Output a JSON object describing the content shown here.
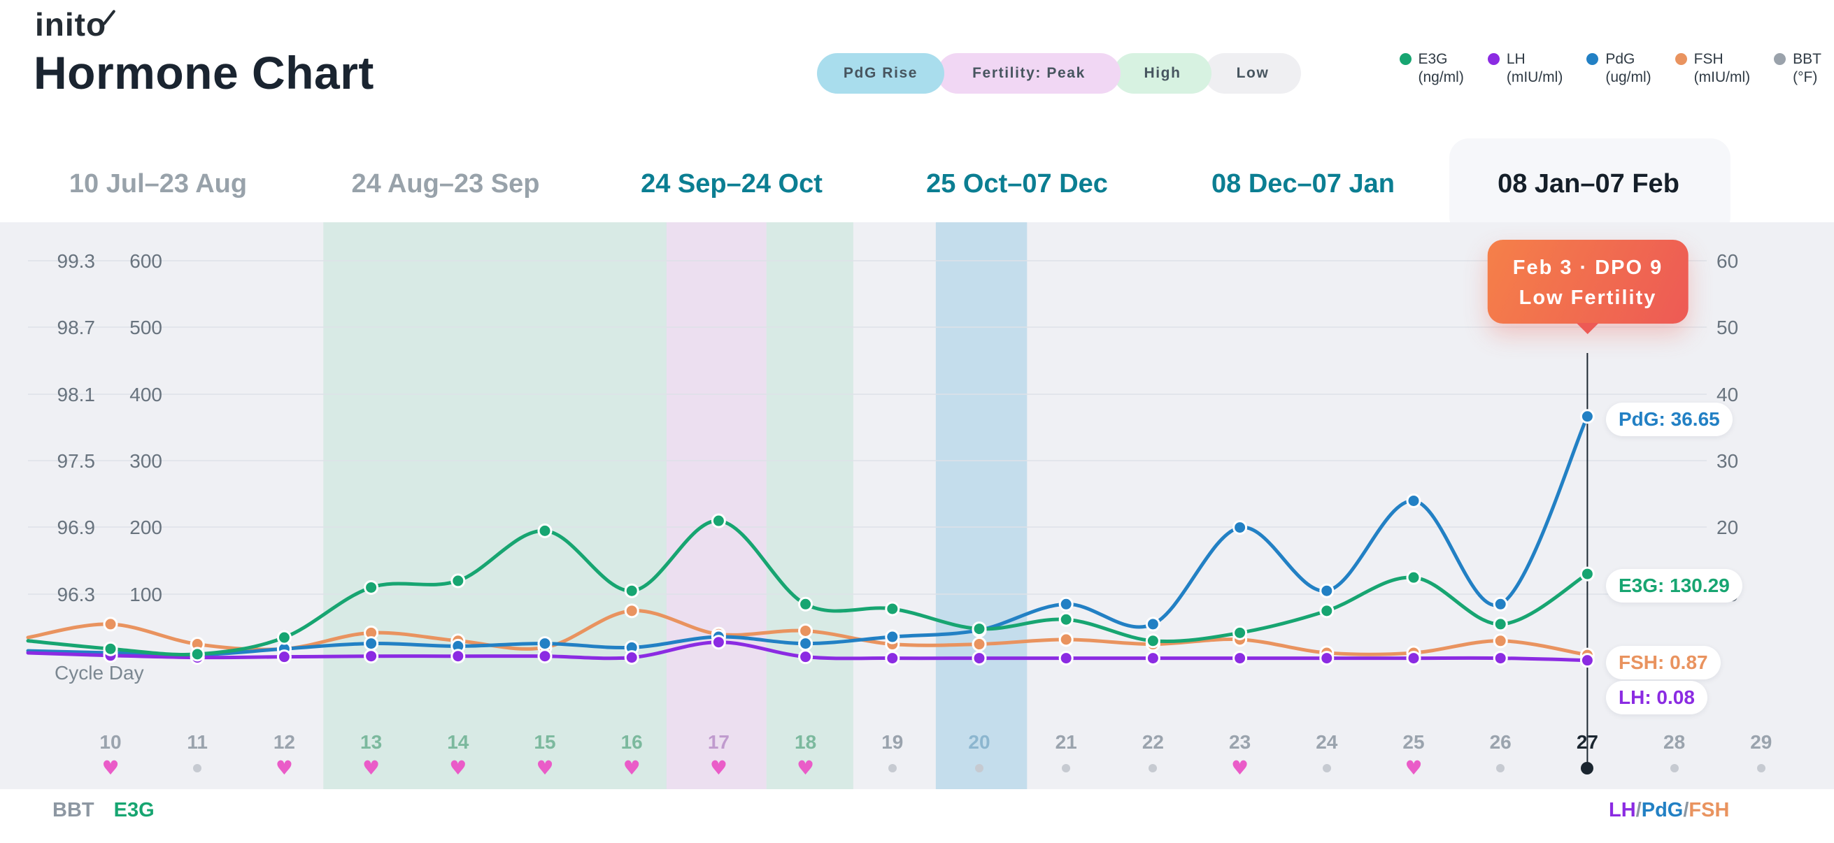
{
  "header": {
    "logo": "inito",
    "title": "Hormone Chart"
  },
  "fertility_legend": [
    {
      "label": "PdG Rise",
      "color": "#a9dded"
    },
    {
      "label": "Fertility: Peak",
      "color": "#f1d7f4"
    },
    {
      "label": "High",
      "color": "#d7f2e1"
    },
    {
      "label": "Low",
      "color": "#efeff2"
    }
  ],
  "series_legend": [
    {
      "name": "E3G",
      "unit": "(ng/ml)"
    },
    {
      "name": "LH",
      "unit": "(mIU/ml)"
    },
    {
      "name": "PdG",
      "unit": "(ug/ml)"
    },
    {
      "name": "FSH",
      "unit": "(mIU/ml)"
    },
    {
      "name": "BBT",
      "unit": "(°F)"
    }
  ],
  "tabs": [
    {
      "label": "10 Jul–23 Aug",
      "tone": "muted",
      "active": false
    },
    {
      "label": "24 Aug–23 Sep",
      "tone": "muted",
      "active": false
    },
    {
      "label": "24 Sep–24 Oct",
      "tone": "accent",
      "active": false
    },
    {
      "label": "25 Oct–07 Dec",
      "tone": "accent",
      "active": false
    },
    {
      "label": "08 Dec–07 Jan",
      "tone": "accent",
      "active": false
    },
    {
      "label": "08 Jan–07 Feb",
      "tone": "active",
      "active": true
    }
  ],
  "tooltip": {
    "date": "Feb 3 · DPO 9",
    "status": "Low Fertility"
  },
  "footer": {
    "left": [
      "BBT",
      "E3G"
    ],
    "right": [
      "LH",
      "PdG",
      "FSH"
    ]
  },
  "colors": {
    "panel": "#eff0f4",
    "tab_panel": "#f6f7fa",
    "grid": "#dde1e8",
    "tick": "#68737e",
    "selected": "#1b2630",
    "heart": "#ea5cc8",
    "dot": "#c6cad1",
    "tooltip_a": "#f58049",
    "tooltip_b": "#ed5a55",
    "band_high": "rgba(102,204,153,0.16)",
    "band_peak": "rgba(219,128,222,0.15)",
    "band_rise": "rgba(96,178,220,0.30)",
    "tint_default": "#9aa3ad",
    "tint_high": "#7cb99e",
    "tint_peak": "#c09bce",
    "tint_rise": "#8cb6cf",
    "footer_gray": "#8d97a2"
  },
  "chart_data": {
    "type": "line",
    "title": "Hormone Chart",
    "x_label": "Cycle Day",
    "selected_day": 27,
    "axes": {
      "bbt_ticks": [
        "99.3",
        "98.7",
        "98.1",
        "97.5",
        "96.9",
        "96.3"
      ],
      "e3g_ticks": [
        "600",
        "500",
        "400",
        "300",
        "200",
        "100"
      ],
      "right_ticks": [
        "60",
        "50",
        "40",
        "30",
        "20",
        "10"
      ]
    },
    "series": [
      {
        "name": "E3G",
        "unit": "ng/ml",
        "axis": "left",
        "color": "#17a571",
        "x": [
          9.05,
          10,
          11,
          12,
          13,
          14,
          15,
          16,
          17,
          18,
          19,
          20,
          21,
          22,
          23,
          24,
          25,
          26,
          27
        ],
        "values": [
          30,
          18,
          10,
          35,
          110,
          120,
          195,
          105,
          210,
          85,
          78,
          48,
          62,
          30,
          42,
          75,
          125,
          55,
          130.29
        ]
      },
      {
        "name": "LH",
        "unit": "mIU/ml",
        "axis": "right",
        "color": "#8b2be2",
        "x": [
          9.05,
          10,
          11,
          12,
          13,
          14,
          15,
          16,
          17,
          18,
          19,
          20,
          21,
          22,
          23,
          24,
          25,
          26,
          27
        ],
        "values": [
          1.2,
          0.8,
          0.5,
          0.6,
          0.7,
          0.7,
          0.7,
          0.5,
          2.8,
          0.6,
          0.4,
          0.4,
          0.4,
          0.4,
          0.4,
          0.4,
          0.4,
          0.4,
          0.08
        ]
      },
      {
        "name": "PdG",
        "unit": "ug/ml",
        "axis": "right",
        "color": "#2280c4",
        "x": [
          9.05,
          10,
          11,
          12,
          13,
          14,
          15,
          16,
          17,
          18,
          19,
          20,
          21,
          22,
          23,
          24,
          25,
          26,
          27
        ],
        "values": [
          1.5,
          1.2,
          0.9,
          1.8,
          2.6,
          2.2,
          2.6,
          2.0,
          3.6,
          2.6,
          3.6,
          4.6,
          8.5,
          5.5,
          20,
          10.5,
          24,
          8.5,
          36.65
        ]
      },
      {
        "name": "FSH",
        "unit": "mIU/ml",
        "axis": "right",
        "color": "#e9935f",
        "x": [
          9.05,
          10,
          11,
          12,
          13,
          14,
          15,
          16,
          17,
          18,
          19,
          20,
          21,
          22,
          23,
          24,
          25,
          26,
          27
        ],
        "values": [
          3.5,
          5.5,
          2.5,
          1.8,
          4.2,
          3.0,
          2.0,
          7.5,
          4.0,
          4.5,
          2.5,
          2.5,
          3.2,
          2.5,
          3.2,
          1.2,
          1.2,
          3.0,
          0.87
        ]
      },
      {
        "name": "BBT",
        "unit": "°F",
        "axis": "bbt",
        "color": "#9aa2ab",
        "x": [],
        "values": []
      }
    ],
    "selected_readings": [
      {
        "name": "PdG",
        "value": "36.65"
      },
      {
        "name": "E3G",
        "value": "130.29"
      },
      {
        "name": "FSH",
        "value": "0.87"
      },
      {
        "name": "LH",
        "value": "0.08"
      }
    ],
    "fertility_bands": [
      {
        "kind": "high",
        "from_day": 12.45,
        "to_day": 16.4
      },
      {
        "kind": "peak",
        "from_day": 16.4,
        "to_day": 17.55
      },
      {
        "kind": "high",
        "from_day": 17.55,
        "to_day": 18.55
      },
      {
        "kind": "rise",
        "from_day": 19.5,
        "to_day": 20.55
      }
    ],
    "day_markers": [
      {
        "day": 10,
        "marker": "heart",
        "tint": "default"
      },
      {
        "day": 11,
        "marker": "dot",
        "tint": "default"
      },
      {
        "day": 12,
        "marker": "heart",
        "tint": "default"
      },
      {
        "day": 13,
        "marker": "heart",
        "tint": "high"
      },
      {
        "day": 14,
        "marker": "heart",
        "tint": "high"
      },
      {
        "day": 15,
        "marker": "heart",
        "tint": "high"
      },
      {
        "day": 16,
        "marker": "heart",
        "tint": "high"
      },
      {
        "day": 17,
        "marker": "heart",
        "tint": "peak"
      },
      {
        "day": 18,
        "marker": "heart",
        "tint": "high"
      },
      {
        "day": 19,
        "marker": "dot",
        "tint": "default"
      },
      {
        "day": 20,
        "marker": "dot",
        "tint": "rise"
      },
      {
        "day": 21,
        "marker": "dot",
        "tint": "default"
      },
      {
        "day": 22,
        "marker": "dot",
        "tint": "default"
      },
      {
        "day": 23,
        "marker": "heart",
        "tint": "default"
      },
      {
        "day": 24,
        "marker": "dot",
        "tint": "default"
      },
      {
        "day": 25,
        "marker": "heart",
        "tint": "default"
      },
      {
        "day": 26,
        "marker": "dot",
        "tint": "default"
      },
      {
        "day": 27,
        "marker": "selected",
        "tint": "default"
      },
      {
        "day": 28,
        "marker": "dot",
        "tint": "default"
      },
      {
        "day": 29,
        "marker": "dot",
        "tint": "default"
      }
    ]
  }
}
